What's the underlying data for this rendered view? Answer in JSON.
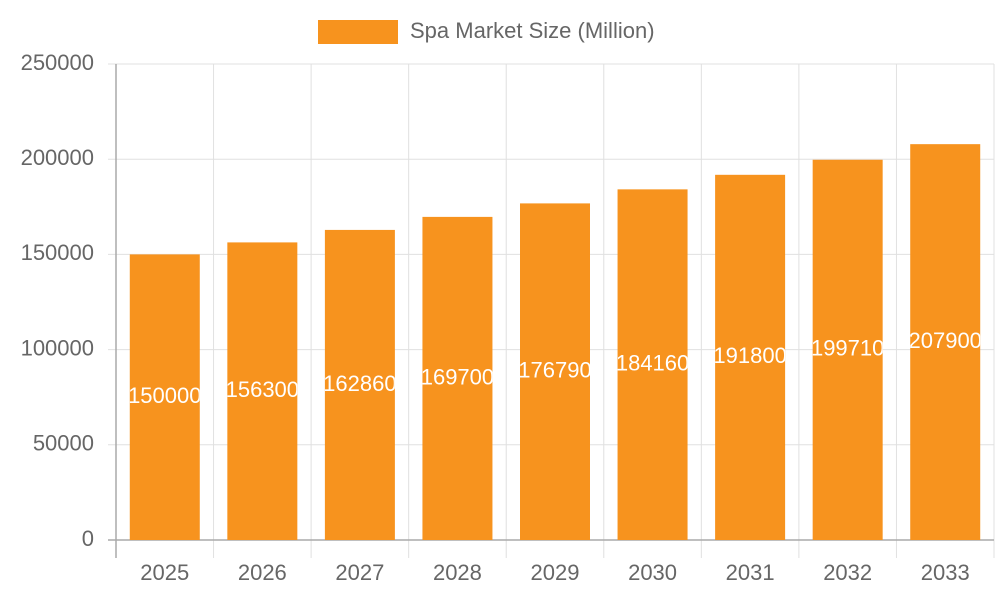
{
  "chart_data": {
    "type": "bar",
    "categories": [
      "2025",
      "2026",
      "2027",
      "2028",
      "2029",
      "2030",
      "2031",
      "2032",
      "2033"
    ],
    "series": [
      {
        "name": "Spa Market Size (Million)",
        "color": "#f7931e",
        "values": [
          150000,
          156300,
          162860,
          169700,
          176790,
          184160,
          191800,
          199710,
          207900
        ]
      }
    ],
    "ylim": [
      0,
      250000
    ],
    "yticks": [
      0,
      50000,
      100000,
      150000,
      200000,
      250000
    ],
    "grid": true,
    "legend": "top"
  }
}
